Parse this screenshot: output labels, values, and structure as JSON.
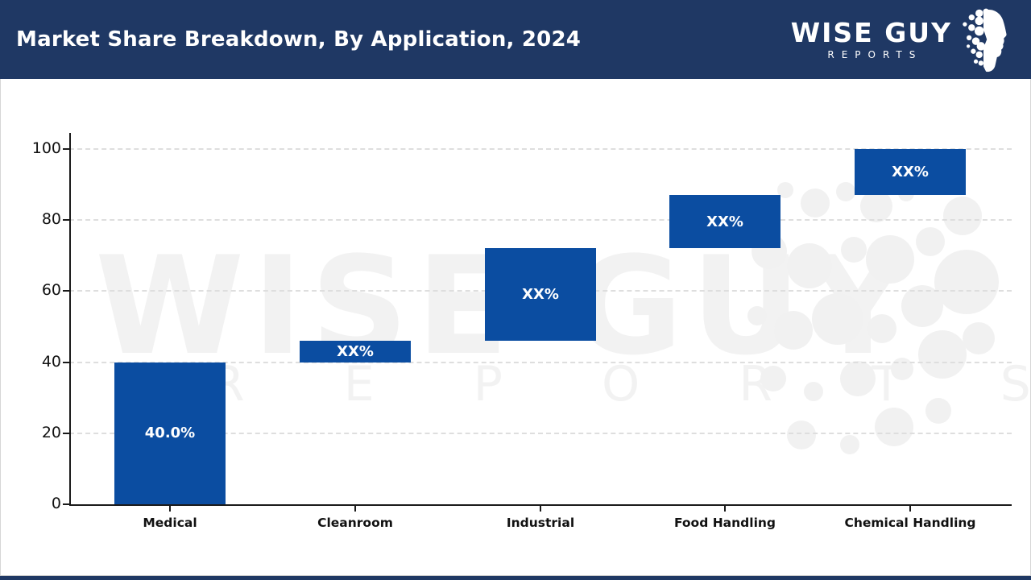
{
  "header": {
    "title": "Market Share Breakdown, By Application, 2024",
    "bg_color": "#1f3864",
    "logo": {
      "line1": "WISE GUY",
      "line2": "REPORTS"
    }
  },
  "watermark": {
    "line1": "WISE GUY",
    "line2": "REPORTS"
  },
  "footer": {
    "bar_color": "#1f3864"
  },
  "chart_data": {
    "type": "bar",
    "subtype": "waterfall",
    "title": "Market Share Breakdown, By Application, 2024",
    "categories": [
      "Medical",
      "Cleanroom",
      "Industrial",
      "Food Handling",
      "Chemical Handling"
    ],
    "segments": [
      {
        "category": "Medical",
        "start": 0,
        "end": 40,
        "label": "40.0%"
      },
      {
        "category": "Cleanroom",
        "start": 40,
        "end": 46,
        "label": "XX%"
      },
      {
        "category": "Industrial",
        "start": 46,
        "end": 72,
        "label": "XX%"
      },
      {
        "category": "Food Handling",
        "start": 72,
        "end": 87,
        "label": "XX%"
      },
      {
        "category": "Chemical Handling",
        "start": 87,
        "end": 100,
        "label": "XX%"
      }
    ],
    "y_ticks": [
      0,
      20,
      40,
      60,
      80,
      100
    ],
    "ylim": [
      0,
      105
    ],
    "xlabel": "",
    "ylabel": "",
    "grid": "horizontal-dashed",
    "legend": "none",
    "bar_color": "#0b4da1",
    "bar_label_color": "#ffffff"
  }
}
